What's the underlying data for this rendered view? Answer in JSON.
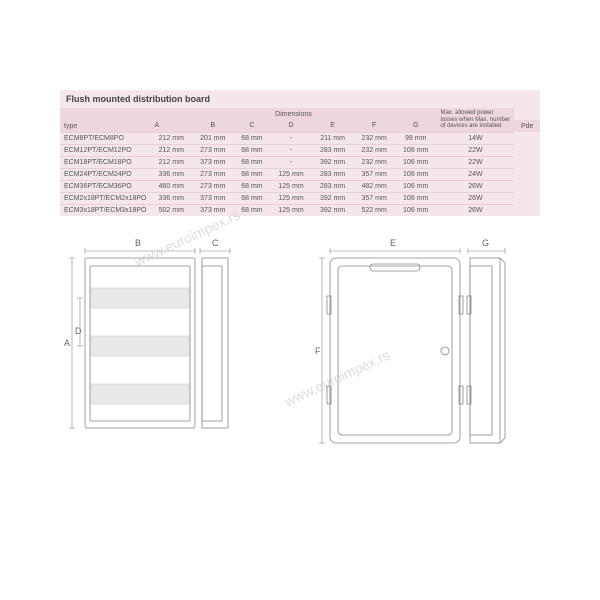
{
  "title": "Flush mounted distribution board",
  "header": {
    "type_label": "type",
    "dimensions_label": "Dimensions",
    "power_label": "Max. allowed power losses when Max. number of devices are installed"
  },
  "columns": [
    "A",
    "B",
    "C",
    "D",
    "E",
    "F",
    "G",
    "Pde"
  ],
  "rows": [
    {
      "type": "ECM8PT/ECM8PO",
      "A": "212 mm",
      "B": "201 mm",
      "C": "68 mm",
      "D": "-",
      "E": "211 mm",
      "F": "232 mm",
      "G": "99 mm",
      "Pde": "14W"
    },
    {
      "type": "ECM12PT/ECM12PO",
      "A": "212 mm",
      "B": "273 mm",
      "C": "68 mm",
      "D": "-",
      "E": "283 mm",
      "F": "232 mm",
      "G": "106 mm",
      "Pde": "22W"
    },
    {
      "type": "ECM18PT/ECM18PO",
      "A": "212 mm",
      "B": "373 mm",
      "C": "68 mm",
      "D": "-",
      "E": "392 mm",
      "F": "232 mm",
      "G": "106 mm",
      "Pde": "22W"
    },
    {
      "type": "ECM24PT/ECM24PO",
      "A": "336 mm",
      "B": "273 mm",
      "C": "68 mm",
      "D": "125 mm",
      "E": "283 mm",
      "F": "357 mm",
      "G": "106 mm",
      "Pde": "24W"
    },
    {
      "type": "ECM36PT/ECM36PO",
      "A": "460 mm",
      "B": "273 mm",
      "C": "68 mm",
      "D": "125 mm",
      "E": "283 mm",
      "F": "482 mm",
      "G": "106 mm",
      "Pde": "26W"
    },
    {
      "type": "ECM2x18PT/ECM2x18PO",
      "A": "336 mm",
      "B": "373 mm",
      "C": "68 mm",
      "D": "125 mm",
      "E": "392 mm",
      "F": "357 mm",
      "G": "106 mm",
      "Pde": "26W"
    },
    {
      "type": "ECM3x18PT/ECM3x18PO",
      "A": "502 mm",
      "B": "373 mm",
      "C": "68 mm",
      "D": "125 mm",
      "E": "392 mm",
      "F": "522 mm",
      "G": "106 mm",
      "Pde": "26W"
    }
  ],
  "dim_labels": {
    "A": "A",
    "B": "B",
    "C": "C",
    "D": "D",
    "E": "E",
    "F": "F",
    "G": "G"
  },
  "watermark": "www.euroimpex.rs",
  "colors": {
    "header_bg": "#f5e6ec",
    "row_bg": "#f5e6ec",
    "sub_bg": "#eed6df",
    "border": "#e8cfd8",
    "stroke": "#888888",
    "text": "#555555"
  }
}
